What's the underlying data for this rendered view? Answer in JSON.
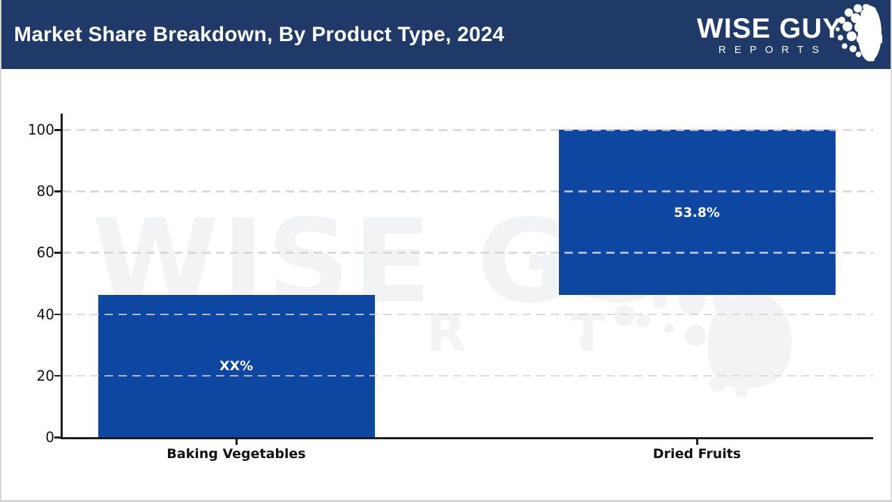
{
  "header": {
    "title": "Market Share Breakdown, By Product Type, 2024",
    "bg_color": "#1F3A68",
    "logo": {
      "line1": "WISE GUY",
      "line2": "REPORTS",
      "head_icon": "dotted-profile-head",
      "color": "#FFFFFF"
    }
  },
  "watermark": {
    "line1": "WISE GU",
    "line2": "R T S",
    "color": "#F2F3F5"
  },
  "chart_data": {
    "type": "bar",
    "subtype": "floating-waterfall-bars",
    "title": "Market Share Breakdown, By Product Type, 2024",
    "categories": [
      "Baking Vegetables",
      "Dried Fruits"
    ],
    "bars": [
      {
        "category": "Baking Vegetables",
        "start": 0,
        "end": 46.2,
        "label": "XX%"
      },
      {
        "category": "Dried Fruits",
        "start": 46.2,
        "end": 100,
        "label": "53.8%"
      }
    ],
    "yticks": [
      "0",
      "20",
      "40",
      "60",
      "80",
      "100"
    ],
    "ytick_values": [
      0,
      20,
      40,
      60,
      80,
      100
    ],
    "ylim": [
      0,
      105
    ],
    "xlabel": "",
    "ylabel": "",
    "legend": "none",
    "grid": "horizontal-dashed",
    "bar_color": "#0D47A1",
    "bar_label_color": "#FFFFFF",
    "axis_color": "#1A1A1A",
    "grid_color": "#D9D9D9"
  }
}
